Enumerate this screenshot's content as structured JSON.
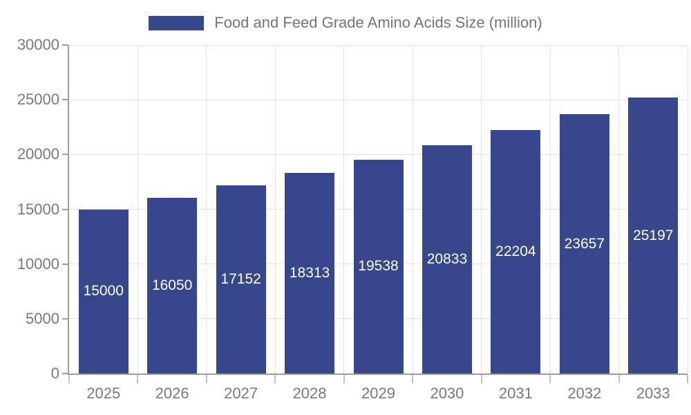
{
  "legend": {
    "swatch_color": "#36478b"
  },
  "chart_data": {
    "type": "bar",
    "title": "Food and Feed Grade Amino Acids Size (million)",
    "categories": [
      "2025",
      "2026",
      "2027",
      "2028",
      "2029",
      "2030",
      "2031",
      "2032",
      "2033"
    ],
    "values": [
      15000,
      16050,
      17152,
      18313,
      19538,
      20833,
      22204,
      23657,
      25197
    ],
    "xlabel": "",
    "ylabel": "",
    "ylim": [
      0,
      30000
    ],
    "yticks": [
      0,
      5000,
      10000,
      15000,
      20000,
      25000,
      30000
    ],
    "grid": true,
    "legend_position": "top",
    "bar_color": "#36478b",
    "bar_value_label_color": "#ffffff",
    "axis_text_color": "#7a7a7a",
    "axis_line_color": "#9e9e9e",
    "gridline_color": "#e3e3e3"
  }
}
